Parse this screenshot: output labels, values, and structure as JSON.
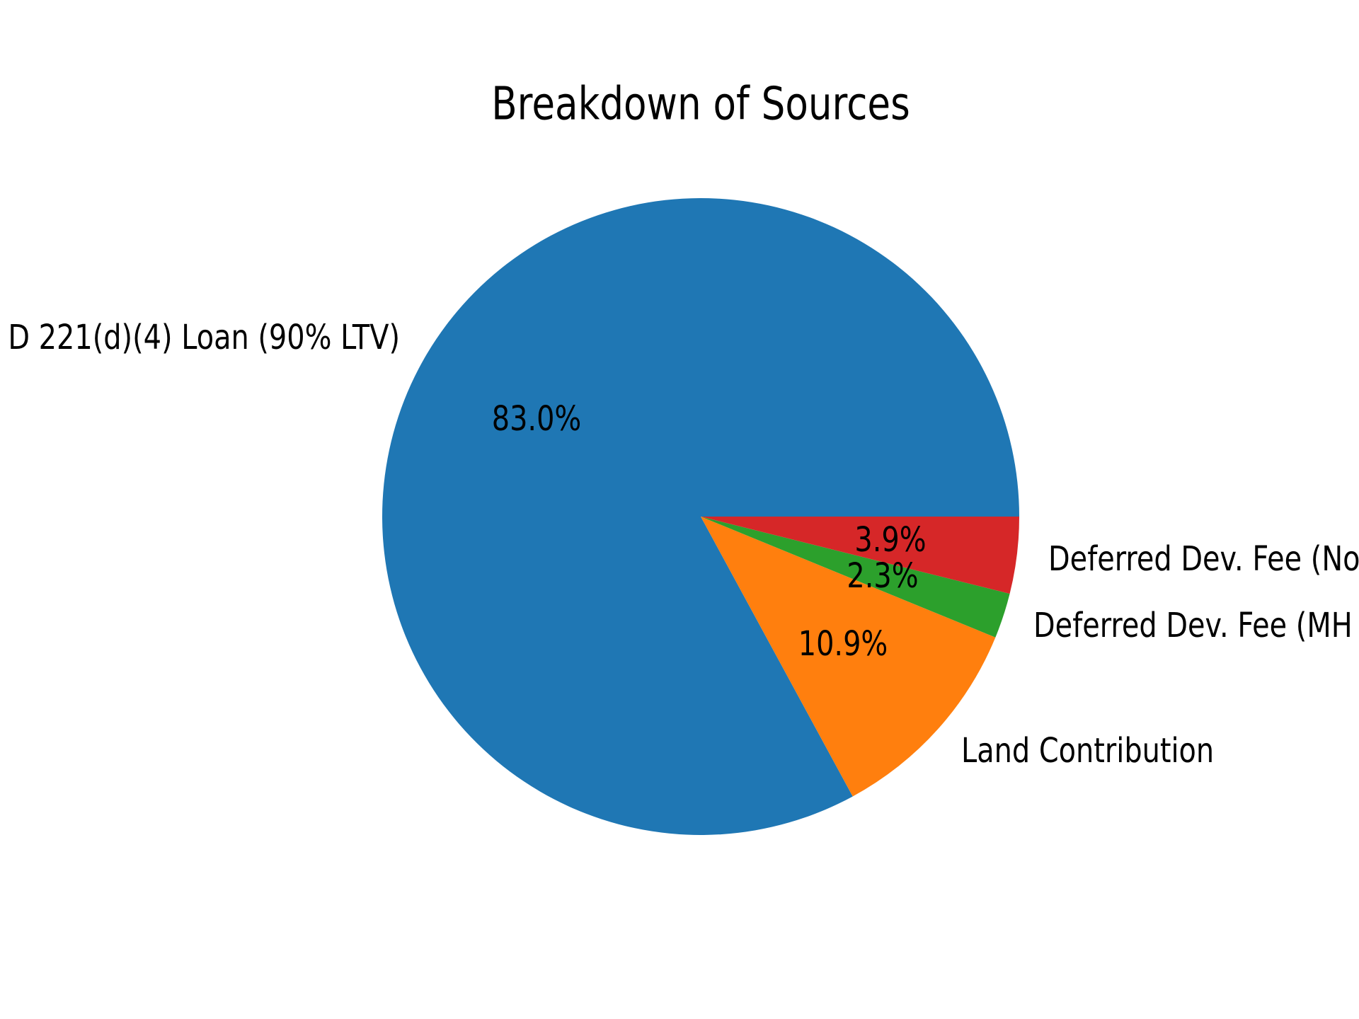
{
  "chart_data": {
    "type": "pie",
    "title": "Breakdown of Sources",
    "slices": [
      {
        "label": "D 221(d)(4) Loan (90% LTV)",
        "value": 83.0,
        "pct_label": "83.0%",
        "color": "#1f77b4"
      },
      {
        "label": "Land Contribution",
        "value": 10.9,
        "pct_label": "10.9%",
        "color": "#ff7f0e"
      },
      {
        "label": "Deferred Dev. Fee (MH",
        "value": 2.3,
        "pct_label": "2.3%",
        "color": "#2ca02c"
      },
      {
        "label": "Deferred Dev. Fee (No",
        "value": 3.9,
        "pct_label": "3.9%",
        "color": "#d62728"
      }
    ],
    "start_angle_deg": 0,
    "direction": "counterclockwise",
    "label_distance": 1.1,
    "pct_distance": 0.6,
    "legend": "none",
    "background": "#ffffff",
    "text_color": "#000000"
  }
}
